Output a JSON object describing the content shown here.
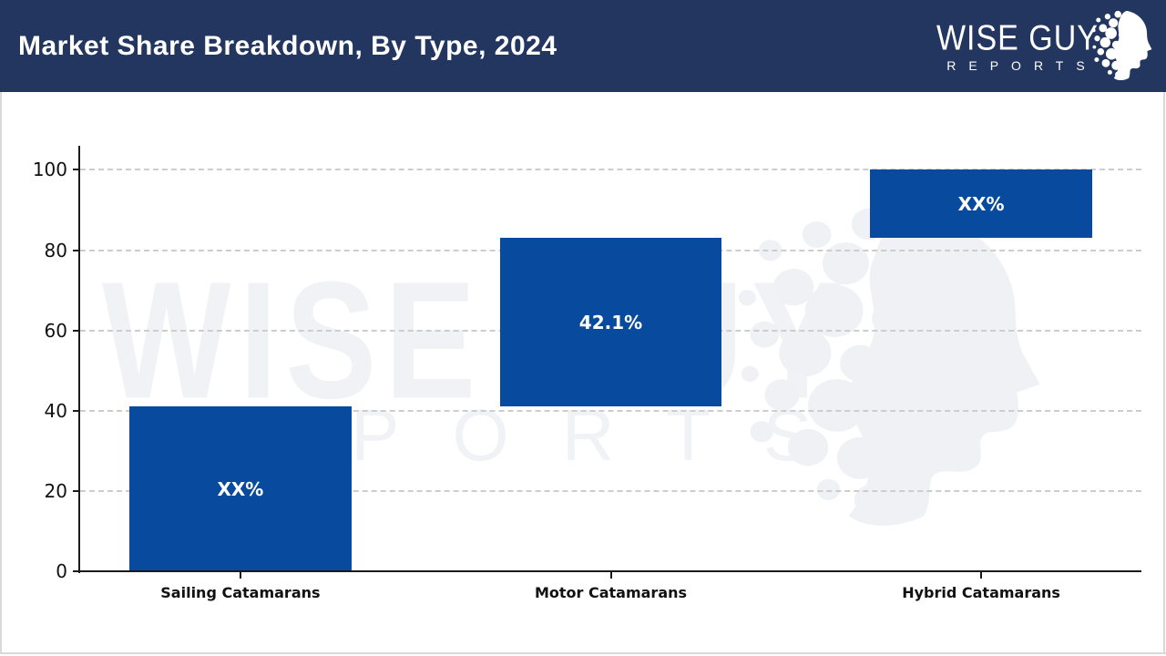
{
  "header": {
    "title": "Market Share Breakdown, By Type, 2024",
    "logo": {
      "line1": "WISE GUY",
      "line2": "REPORTS"
    }
  },
  "watermark": {
    "line1": "WISE GUY",
    "line2": "REPORTS"
  },
  "colors": {
    "header_bg": "#22365f",
    "bar_fill": "#084a9d",
    "bar_label": "#ffffff",
    "gridline": "#cdcdcd",
    "axis": "#1a1a1a",
    "watermark": "#f1f2f5"
  },
  "chart_data": {
    "type": "bar",
    "subtype": "waterfall",
    "title": "Market Share Breakdown, By Type, 2024",
    "categories": [
      "Sailing Catamarans",
      "Motor Catamarans",
      "Hybrid Catamarans"
    ],
    "bars": [
      {
        "category": "Sailing Catamarans",
        "start": 0,
        "end": 41,
        "label": "XX%"
      },
      {
        "category": "Motor Catamarans",
        "start": 41,
        "end": 83.1,
        "label": "42.1%"
      },
      {
        "category": "Hybrid Catamarans",
        "start": 83.1,
        "end": 100,
        "label": "XX%"
      }
    ],
    "yticks": [
      0,
      20,
      40,
      60,
      80,
      100
    ],
    "ylim": [
      0,
      106
    ],
    "xlabel": "",
    "ylabel": "",
    "grid": "horizontal-dashed",
    "legend": null
  }
}
